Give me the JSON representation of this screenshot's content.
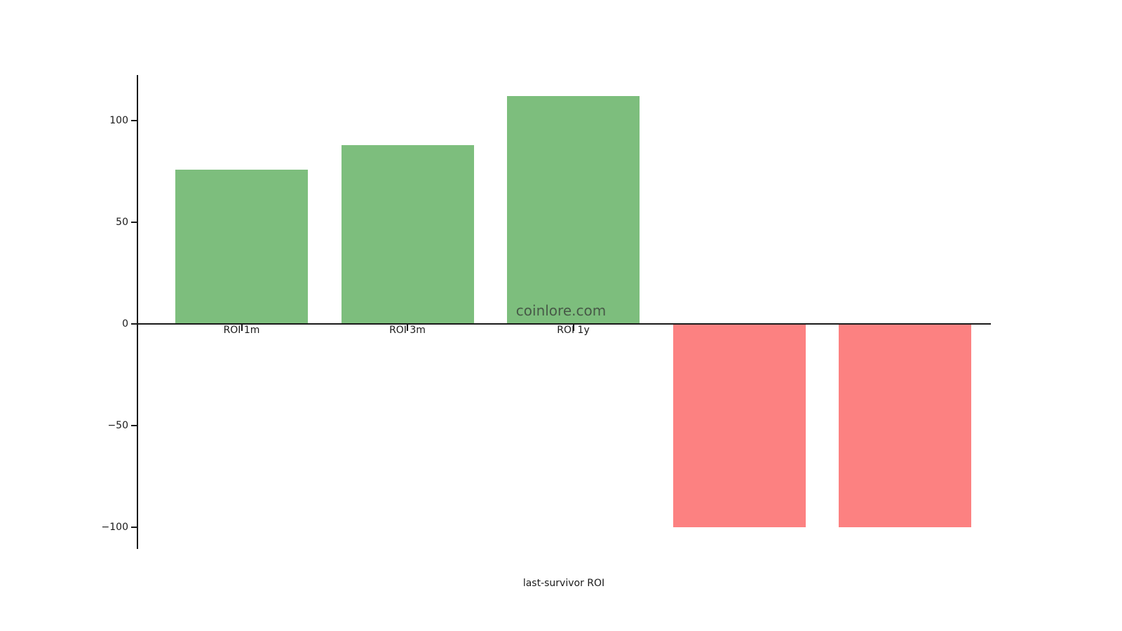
{
  "figure": {
    "watermark_text": "coinlore.com"
  },
  "chart_data": {
    "type": "bar",
    "title": "",
    "xlabel": "last-survivor ROI",
    "ylabel": "",
    "categories": [
      "ROI 1m",
      "ROI 3m",
      "ROI 1y",
      "",
      ""
    ],
    "values": [
      76,
      88,
      112,
      -100,
      -100
    ],
    "bar_colors": [
      "#7dbe7d",
      "#7dbe7d",
      "#7dbe7d",
      "#fc8181",
      "#fc8181"
    ],
    "positive_color": "#7dbe7d",
    "negative_color": "#fc8181",
    "y_ticks": [
      100,
      50,
      0,
      -50,
      -100
    ],
    "y_tick_labels": [
      "100",
      "50",
      "0",
      "−50",
      "−100"
    ],
    "ylim": [
      -110.7,
      122.4
    ],
    "grid": false,
    "legend": false,
    "axis_color": "#1a1a1a",
    "text_color": "#1a1a1a",
    "watermark_color": "#333333"
  }
}
